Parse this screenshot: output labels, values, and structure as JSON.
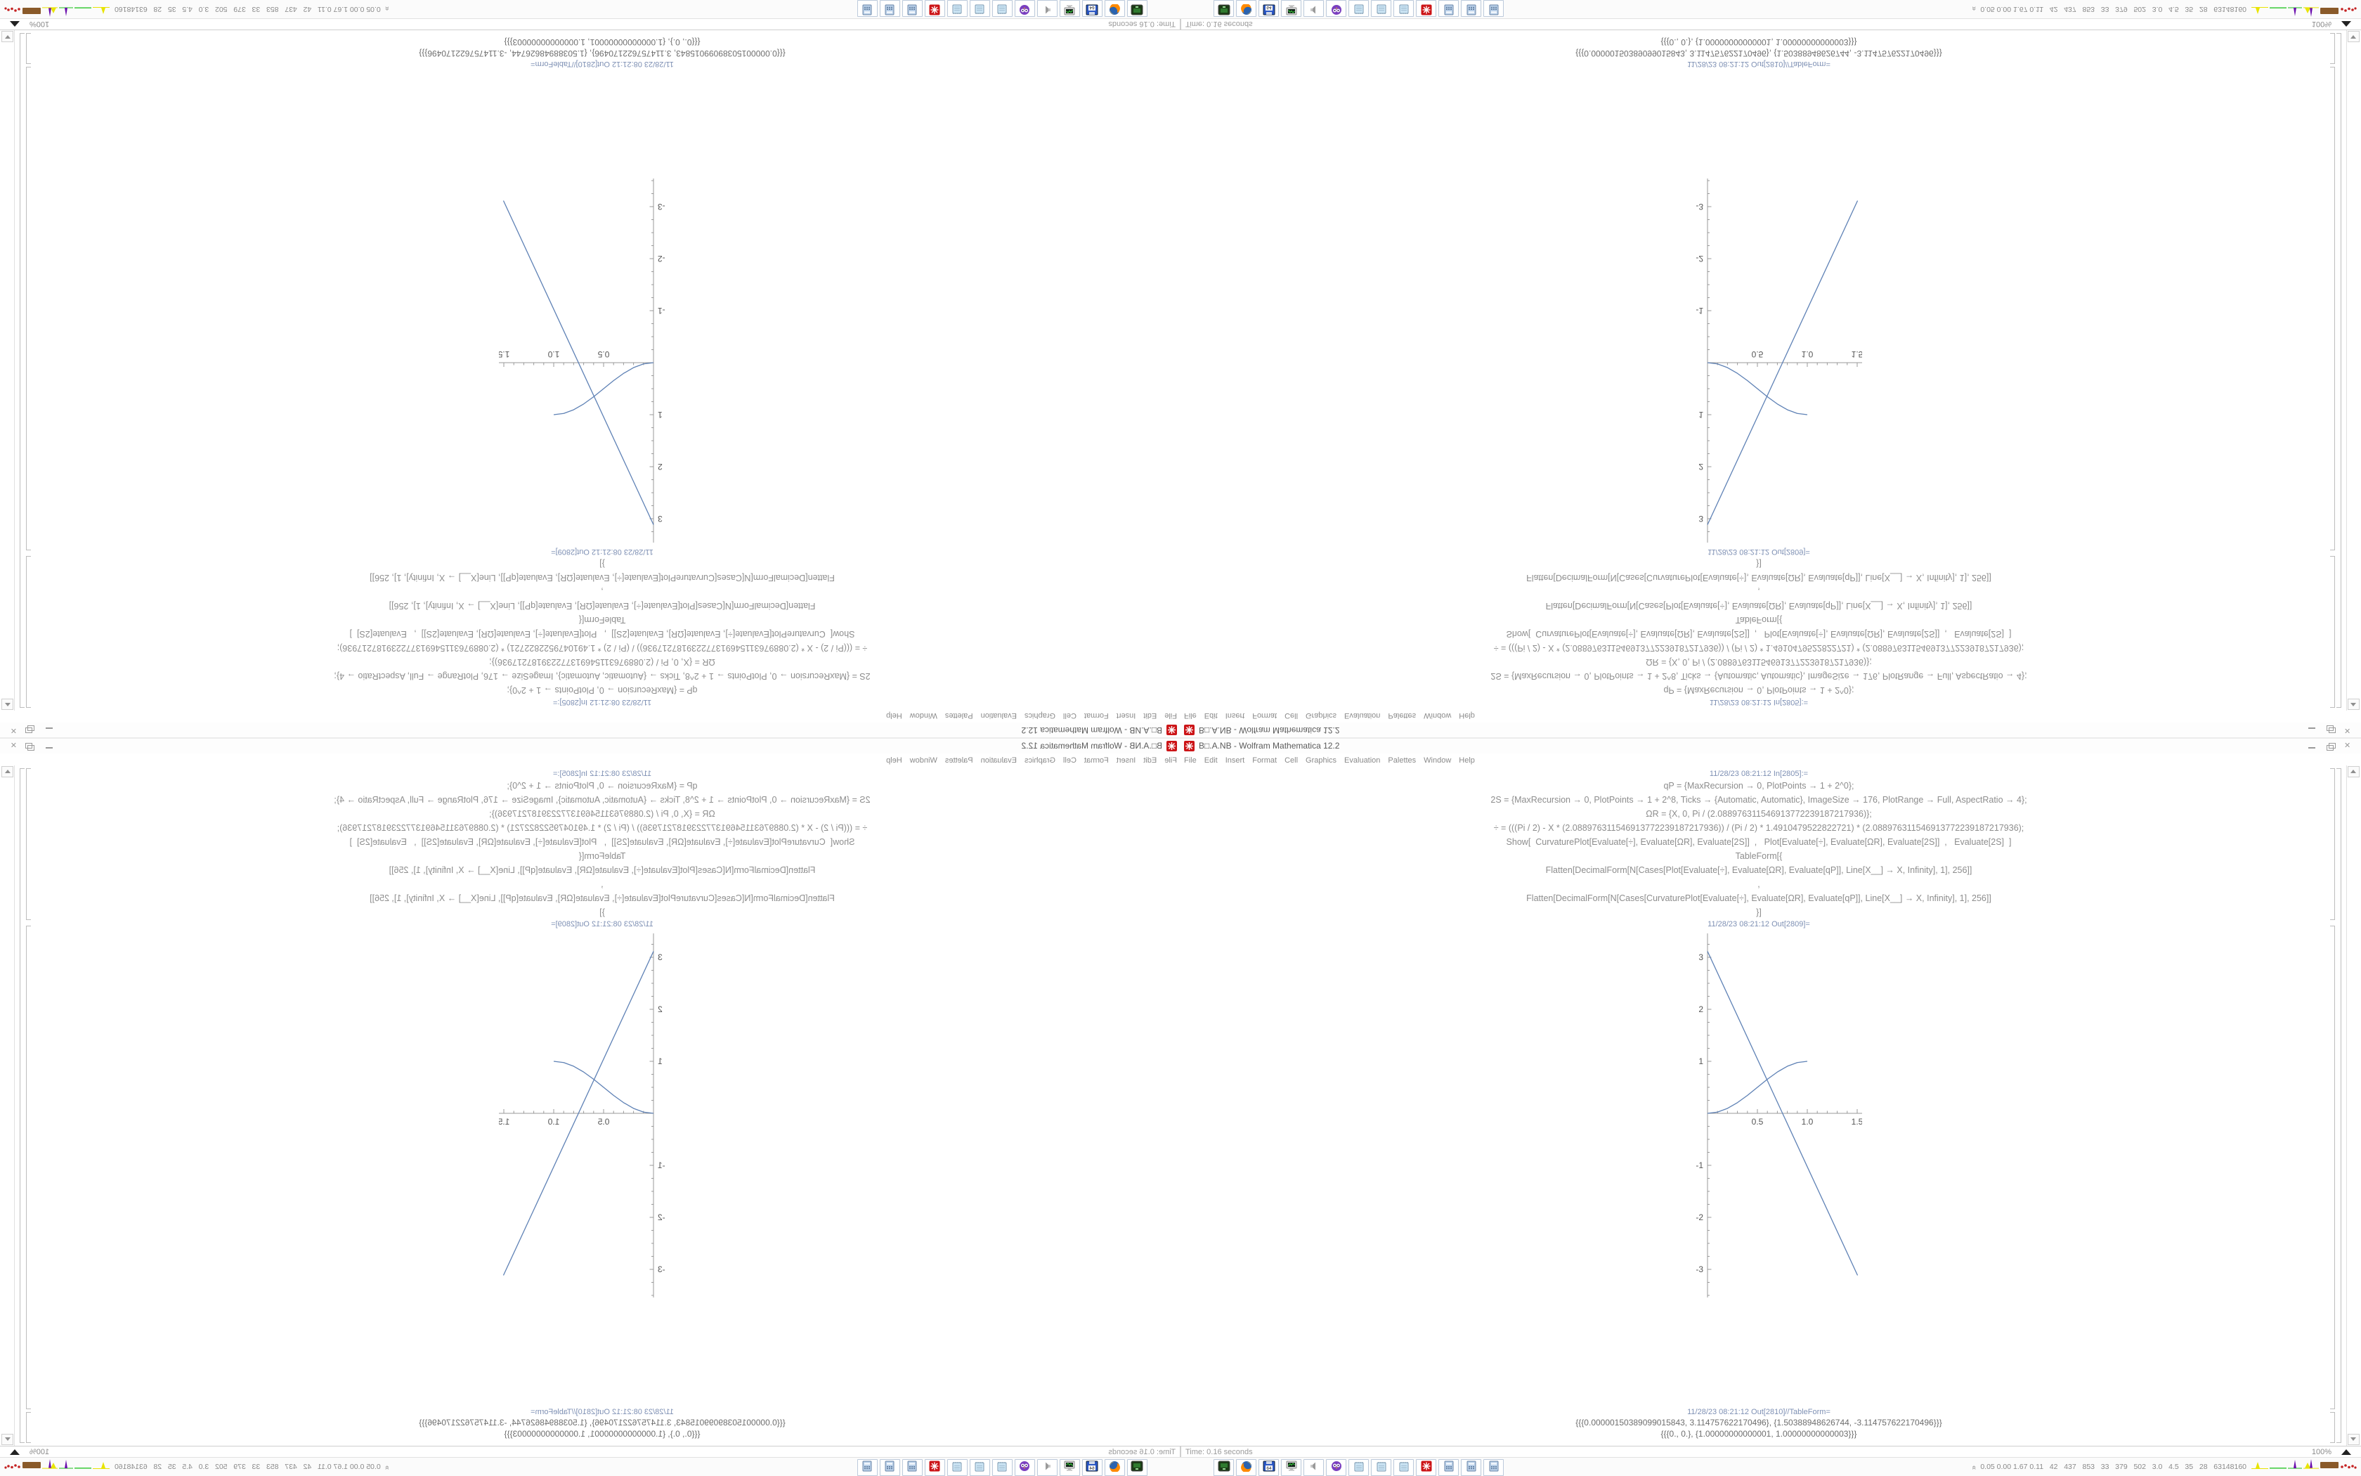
{
  "window": {
    "title": "B□.A.NB - Wolfram Mathematica 12.2",
    "app_icon": "mathematica-spikey",
    "menu": [
      "File",
      "Edit",
      "Insert",
      "Format",
      "Cell",
      "Graphics",
      "Evaluation",
      "Palettes",
      "Window",
      "Help"
    ],
    "window_buttons": [
      "minimize",
      "restore",
      "close"
    ]
  },
  "cells": {
    "in_label": "11/28/23 08:21:12 In[2805]:=",
    "code_lines": [
      "qP = {MaxRecursion → 0, PlotPoints → 1 + 2^0};",
      "2S = {MaxRecursion → 0, PlotPoints → 1 + 2^8, Ticks → {Automatic, Automatic}, ImageSize → 176, PlotRange → Full, AspectRatio → 4};",
      "ΩR = {X, 0, Pi / (2.088976311546913772239187217936)};",
      "÷ = (((Pi / 2) - X * (2.088976311546913772239187217936)) / (Pi / 2) * 1.4910479522822721) * (2.088976311546913772239187217936);",
      "Show[  CurvaturePlot[Evaluate[÷], Evaluate[ΩR], Evaluate[2S]]  ,   Plot[Evaluate[÷], Evaluate[ΩR], Evaluate[2S]]  ,   Evaluate[2S]  ]",
      "TableForm[{",
      "Flatten[DecimalForm[N[Cases[Plot[Evaluate[÷], Evaluate[ΩR], Evaluate[qP]], Line[X__] → X, Infinity], 1], 256]]",
      ",",
      "Flatten[DecimalForm[N[Cases[CurvaturePlot[Evaluate[÷], Evaluate[ΩR], Evaluate[qP]], Line[X__] → X, Infinity], 1], 256]]",
      "}]"
    ],
    "out_plot_label": "11/28/23 08:21:12 Out[2809]=",
    "out_table_label": "11/28/23 08:21:12 Out[2810]//TableForm=",
    "table_rows": [
      "{{{0.00000150389099015843, 3.114757622170496}, {1.50388948626744, -3.114757622170496}}}",
      "{{{0., 0.}, {1.00000000000001, 1.00000000000003}}}"
    ]
  },
  "chart_data": {
    "type": "line",
    "title": "",
    "xlabel": "",
    "ylabel": "",
    "xlim": [
      0,
      1.55
    ],
    "ylim": [
      -3.54,
      3.46
    ],
    "x_ticks": [
      0.5,
      1.0,
      1.5
    ],
    "x_tick_labels": [
      "0.5",
      "1.0",
      "1.5"
    ],
    "y_ticks": [
      3,
      2,
      1,
      -1,
      -2,
      -3
    ],
    "y_tick_labels": [
      "3",
      "2",
      "1",
      "-1",
      "-2",
      "-3"
    ],
    "x_minor_step": 0.1,
    "y_minor_step": 0.25,
    "grid": false,
    "legend": false,
    "series": [
      {
        "name": "straight-descending-line",
        "color": "#5e81b5",
        "points": [
          [
            1.5e-06,
            3.1148
          ],
          [
            1.50389,
            -3.1148
          ]
        ]
      },
      {
        "name": "curvature-sigmoid",
        "color": "#5e81b5",
        "points": [
          [
            0,
            0
          ],
          [
            0.1,
            0.024
          ],
          [
            0.2,
            0.095
          ],
          [
            0.3,
            0.206
          ],
          [
            0.4,
            0.345
          ],
          [
            0.5,
            0.5
          ],
          [
            0.6,
            0.655
          ],
          [
            0.7,
            0.794
          ],
          [
            0.8,
            0.905
          ],
          [
            0.9,
            0.976
          ],
          [
            1.0,
            1.0
          ]
        ]
      }
    ]
  },
  "status": {
    "time_text": "Time: 0.16 seconds",
    "magnification": "100%"
  },
  "taskbar": {
    "buttons": [
      {
        "icon": "console"
      },
      {
        "icon": "firefox"
      },
      {
        "icon": "floppy64",
        "label": "64"
      },
      {
        "icon": "monitor"
      },
      {
        "icon": "speaker"
      },
      {
        "icon": "owl"
      },
      {
        "icon": "notepad"
      },
      {
        "icon": "notepad"
      },
      {
        "icon": "notepad"
      },
      {
        "icon": "mathematica"
      },
      {
        "icon": "calculator"
      },
      {
        "icon": "calculator"
      },
      {
        "icon": "calculator"
      }
    ],
    "tray_expand_icon": "chevron-up-double",
    "tray_stats": "0.05 0.00 1.67 0.11   42   437   853   33   379   502   3.0   4.5   35   28   63148160",
    "sparklines": [
      "yellow-spikes",
      "green-line",
      "purple-spike",
      "yellow-purple-spikes",
      "brown-block",
      "red-dots"
    ]
  },
  "colors": {
    "plot_line": "#5e81b5",
    "cell_label": "#7e90b4",
    "spikey_red": "#cc1417",
    "axis": "#999999",
    "taskbar_border": "#bccadb"
  }
}
